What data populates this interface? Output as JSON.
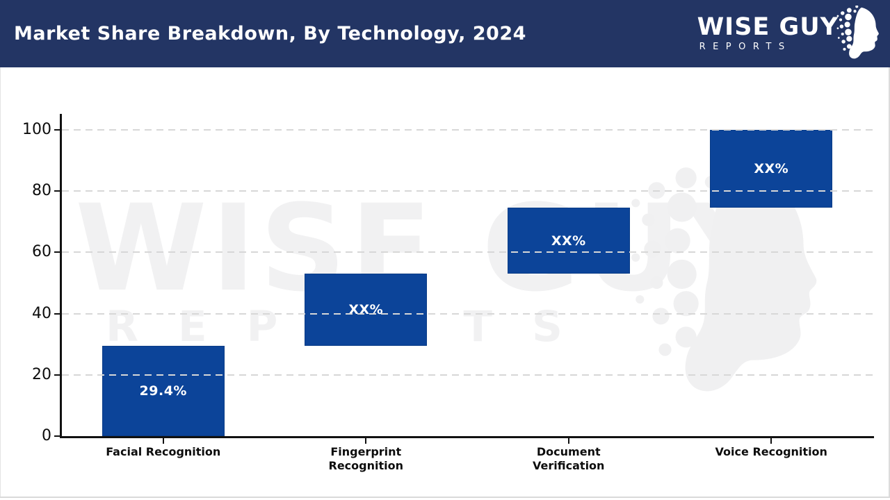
{
  "header": {
    "title": "Market Share Breakdown, By Technology, 2024",
    "background_color": "#233564",
    "logo": {
      "line1": "WISE GUY",
      "line2": "REPORTS"
    }
  },
  "watermark": {
    "line1": "WISE GUY",
    "line2": "REPORTS"
  },
  "chart_data": {
    "type": "bar",
    "subtype": "waterfall",
    "title": "Market Share Breakdown, By Technology, 2024",
    "categories": [
      "Facial Recognition",
      "Fingerprint Recognition",
      "Document Verification",
      "Voice Recognition"
    ],
    "category_lines": [
      [
        "Facial Recognition"
      ],
      [
        "Fingerprint",
        "Recognition"
      ],
      [
        "Document",
        "Verification"
      ],
      [
        "Voice Recognition"
      ]
    ],
    "bars": [
      {
        "category": "Facial Recognition",
        "start": 0,
        "end": 29.4,
        "label": "29.4%"
      },
      {
        "category": "Fingerprint Recognition",
        "start": 29.4,
        "end": 53,
        "label": "XX%"
      },
      {
        "category": "Document Verification",
        "start": 53,
        "end": 74.5,
        "label": "XX%"
      },
      {
        "category": "Voice Recognition",
        "start": 74.5,
        "end": 100,
        "label": "XX%"
      }
    ],
    "yticks": [
      0,
      20,
      40,
      60,
      80,
      100
    ],
    "ylim": [
      0,
      105
    ],
    "xlabel": "",
    "ylabel": "",
    "legend": "none",
    "grid": "horizontal-dashed",
    "bar_color": "#0c4499",
    "bar_label_color": "#ffffff",
    "grid_color": "#d7d7d7",
    "axis_color": "#111111"
  }
}
